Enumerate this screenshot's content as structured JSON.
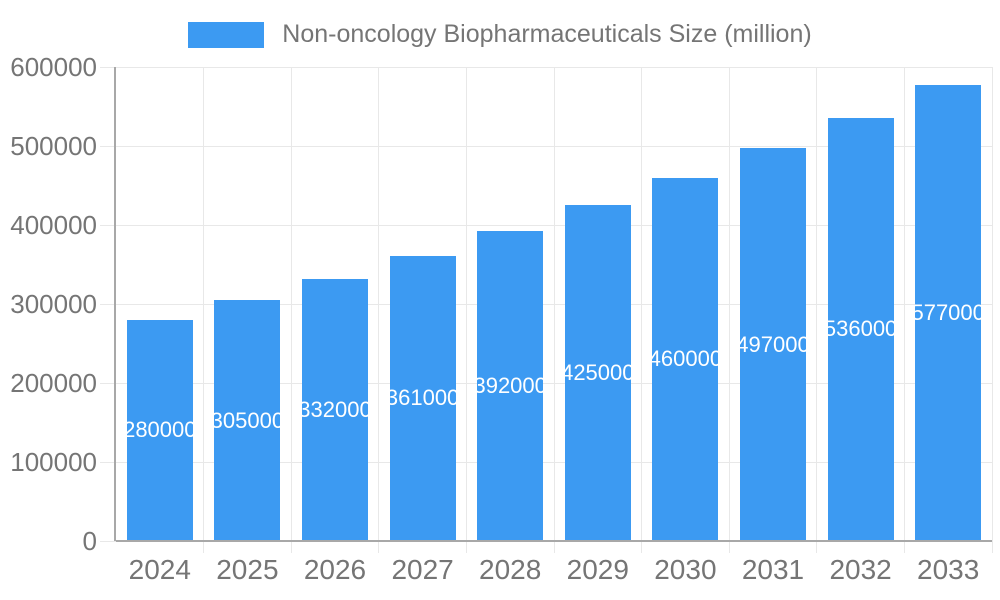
{
  "legend": {
    "label": "Non-oncology Biopharmaceuticals Size (million)"
  },
  "colors": {
    "bar": "#3c9af2",
    "bar_label_text": "#ffffff",
    "grid_line": "#e8e8e8",
    "axis_line": "#a8a8a8",
    "axis_text": "#757575",
    "background": "#ffffff"
  },
  "chart_data": {
    "type": "bar",
    "title": "Non-oncology Biopharmaceuticals Size (million)",
    "legend_position": "top-center",
    "grid": true,
    "categories": [
      "2024",
      "2025",
      "2026",
      "2027",
      "2028",
      "2029",
      "2030",
      "2031",
      "2032",
      "2033"
    ],
    "series": [
      {
        "name": "Non-oncology Biopharmaceuticals Size (million)",
        "values": [
          280000,
          305000,
          332000,
          361000,
          392000,
          425000,
          460000,
          497000,
          536000,
          577000
        ]
      }
    ],
    "bar_labels": [
      "280000",
      "305000",
      "332000",
      "361000",
      "392000",
      "425000",
      "460000",
      "497000",
      "536000",
      "577000"
    ],
    "bar_label_position": "inside-center",
    "xlabel": "",
    "ylabel": "",
    "ylim": [
      0,
      600000
    ],
    "yticks": [
      0,
      100000,
      200000,
      300000,
      400000,
      500000,
      600000
    ],
    "ytick_labels": [
      "0",
      "100000",
      "200000",
      "300000",
      "400000",
      "500000",
      "600000"
    ]
  }
}
